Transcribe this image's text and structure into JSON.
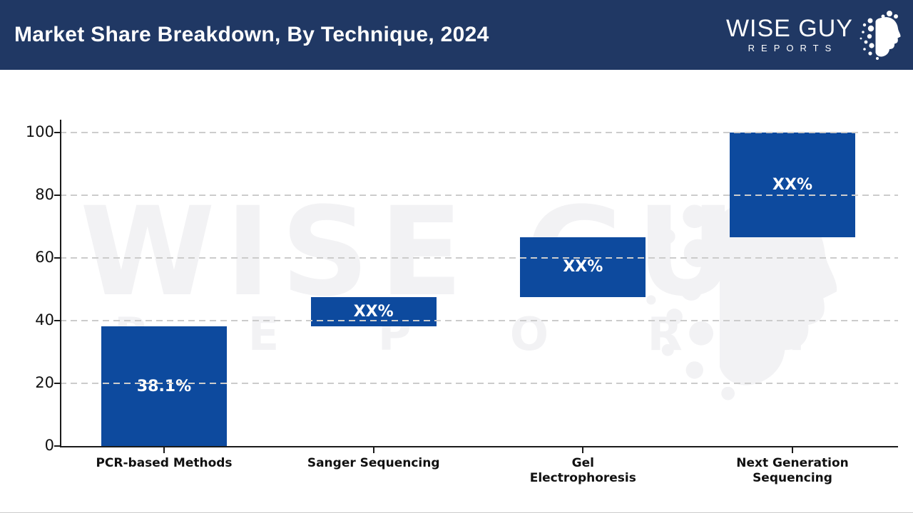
{
  "header": {
    "title": "Market Share Breakdown, By Technique, 2024",
    "logo": {
      "line1": "WISE GUY",
      "line2": "REPORTS"
    }
  },
  "watermark": {
    "line1": "WISE GUY",
    "line2": "R E P O R T S"
  },
  "chart_data": {
    "type": "bar",
    "subtype": "waterfall",
    "title": "Market Share Breakdown, By Technique, 2024",
    "categories": [
      "PCR-based Methods",
      "Sanger Sequencing",
      "Gel Electrophoresis",
      "Next Generation Sequencing"
    ],
    "category_display": [
      "PCR-based Methods",
      "Sanger Sequencing",
      "Gel\nElectrophoresis",
      "Next Generation\nSequencing"
    ],
    "segments": [
      {
        "category": "PCR-based Methods",
        "label": "38.1%",
        "start": 0,
        "end": 38.1
      },
      {
        "category": "Sanger Sequencing",
        "label": "XX%",
        "start": 38.1,
        "end": 47.4
      },
      {
        "category": "Gel Electrophoresis",
        "label": "XX%",
        "start": 47.4,
        "end": 66.7
      },
      {
        "category": "Next Generation Sequencing",
        "label": "XX%",
        "start": 66.7,
        "end": 100
      }
    ],
    "ylim": [
      0,
      100
    ],
    "yticks": [
      0,
      20,
      40,
      60,
      80,
      100
    ],
    "xlabel": "",
    "ylabel": "",
    "grid": "horizontal-dashed",
    "legend": "none",
    "colors": {
      "bar": "#0d4a9e",
      "bar_label": "#ffffff",
      "grid": "#cccccc",
      "axis": "#1a1a1a",
      "header_bg": "#203864",
      "watermark": "#f2f2f4"
    }
  }
}
